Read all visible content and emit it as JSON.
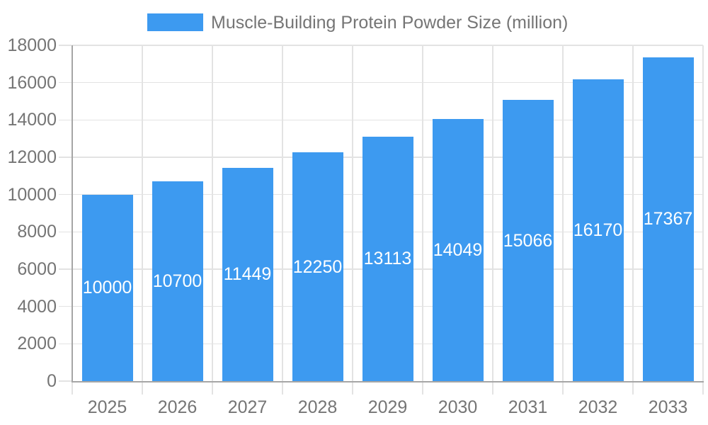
{
  "legend": {
    "label": "Muscle-Building Protein Powder Size (million)"
  },
  "chart_data": {
    "type": "bar",
    "title": "Muscle-Building Protein Powder Size (million)",
    "categories": [
      "2025",
      "2026",
      "2027",
      "2028",
      "2029",
      "2030",
      "2031",
      "2032",
      "2033"
    ],
    "values": [
      10000,
      10700,
      11449,
      12250,
      13113,
      14049,
      15066,
      16170,
      17367
    ],
    "xlabel": "",
    "ylabel": "",
    "ylim": [
      0,
      18000
    ],
    "yticks": [
      0,
      2000,
      4000,
      6000,
      8000,
      10000,
      12000,
      14000,
      16000,
      18000
    ],
    "grid": true,
    "legend_position": "top",
    "value_labels": "inside-center-white"
  },
  "colors": {
    "bar": "#3D9AF0",
    "grid": "#E3E3E3",
    "axis": "#A6A6A6",
    "label_text": "#757575",
    "value_label_text": "#FFFFFF",
    "background": "#FFFFFF"
  }
}
